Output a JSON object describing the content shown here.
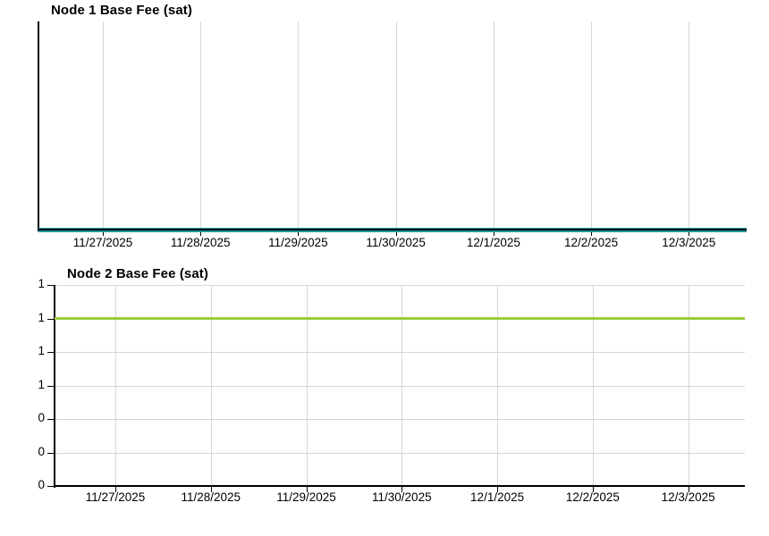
{
  "chart_data": [
    {
      "type": "line",
      "title": "Node 1 Base Fee (sat)",
      "x": [
        "11/27/2025",
        "11/28/2025",
        "11/29/2025",
        "11/30/2025",
        "12/1/2025",
        "12/2/2025",
        "12/3/2025"
      ],
      "xlabel": "",
      "ylabel": "",
      "y_tick_labels": [],
      "ylim": [
        0,
        1
      ],
      "grid": "vertical-only",
      "legend_position": "none",
      "series": [
        {
          "name": "Node 1 Base Fee (sat)",
          "color": "#1d98a0",
          "values": [
            0,
            0,
            0,
            0,
            0,
            0,
            0
          ]
        }
      ]
    },
    {
      "type": "line",
      "title": "Node 2 Base Fee (sat)",
      "x": [
        "11/27/2025",
        "11/28/2025",
        "11/29/2025",
        "11/30/2025",
        "12/1/2025",
        "12/2/2025",
        "12/3/2025"
      ],
      "xlabel": "",
      "ylabel": "",
      "y_tick_labels": [
        "1",
        "1",
        "1",
        "1",
        "0",
        "0",
        "0"
      ],
      "y_tick_values": [
        1.2,
        1.0,
        0.8,
        0.6,
        0.4,
        0.2,
        0
      ],
      "ylim": [
        0,
        1.2
      ],
      "grid": "both",
      "legend_position": "none",
      "series": [
        {
          "name": "Node 2 Base Fee (sat)",
          "color": "#9dcb3b",
          "values": [
            1,
            1,
            1,
            1,
            1,
            1,
            1
          ]
        }
      ]
    }
  ]
}
